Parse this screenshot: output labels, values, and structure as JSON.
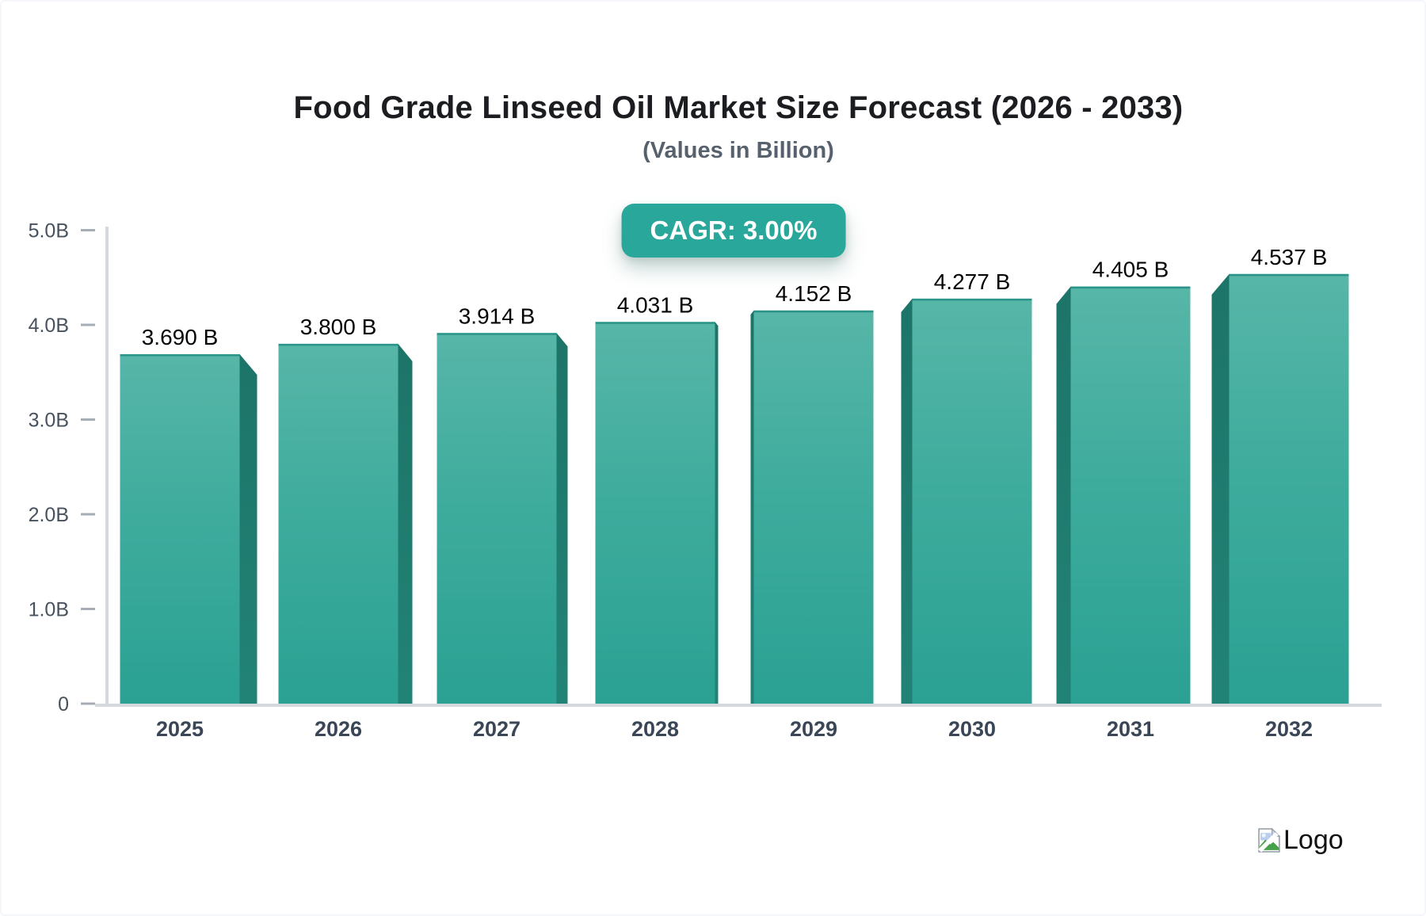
{
  "header": {
    "title": "Food Grade Linseed Oil Market Size Forecast (2026 - 2033)",
    "subtitle": "(Values in Billion)"
  },
  "badge": {
    "label": "CAGR: 3.00%",
    "color": "#2aa79b"
  },
  "chart_data": {
    "type": "bar",
    "title": "Food Grade Linseed Oil Market Size Forecast (2026 - 2033)",
    "subtitle": "(Values in Billion)",
    "annotation": "CAGR: 3.00%",
    "categories": [
      "2025",
      "2026",
      "2027",
      "2028",
      "2029",
      "2030",
      "2031",
      "2032"
    ],
    "values": [
      3.69,
      3.8,
      3.914,
      4.031,
      4.152,
      4.277,
      4.405,
      4.537
    ],
    "value_labels": [
      "3.690 B",
      "3.800 B",
      "3.914 B",
      "4.031 B",
      "4.152 B",
      "4.277 B",
      "4.405 B",
      "4.537 B"
    ],
    "y_ticks": [
      "0",
      "1.0B",
      "2.0B",
      "3.0B",
      "4.0B",
      "5.0B"
    ],
    "y_tick_values": [
      0,
      1,
      2,
      3,
      4,
      5
    ],
    "ylim": [
      0,
      5
    ],
    "xlabel": "",
    "ylabel": "",
    "grid": false,
    "legend": "none",
    "colors": {
      "bar_top": "#57b6a8",
      "bar_mid": "#3fac9d",
      "bar_bottom": "#2aa193",
      "bar_top_edge": "#2b9488",
      "bar_side_dark": "#1d7468",
      "bar_side_light": "#218376",
      "axis_line": "#d5d8dc",
      "tick_dash": "#a6adb7"
    }
  },
  "logo": {
    "alt_text": "Logo"
  }
}
